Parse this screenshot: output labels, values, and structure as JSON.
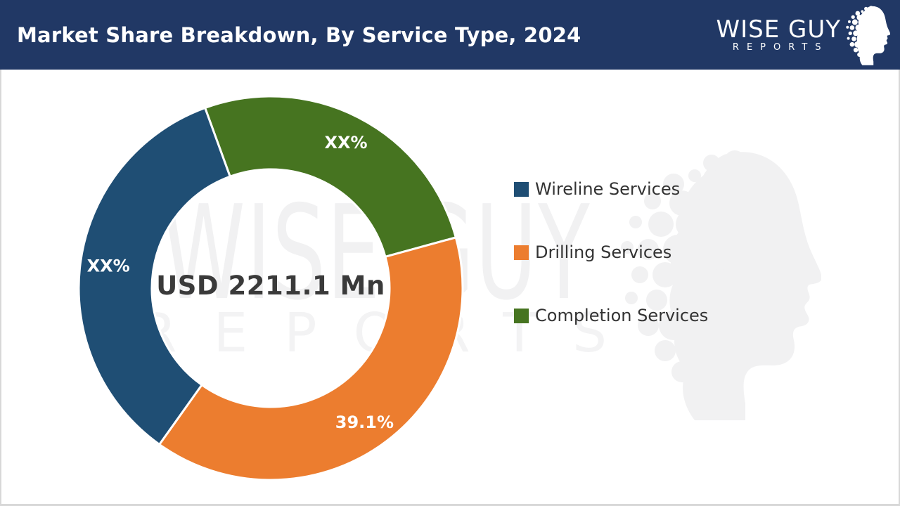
{
  "header": {
    "title": "Market Share Breakdown, By Service Type, 2024",
    "logo": {
      "name_line": "WISE GUY",
      "reports_line": "REPORTS"
    }
  },
  "watermark": {
    "name_line": "WISE GUY",
    "reports_line": "REPORTS"
  },
  "colors": {
    "header_bg": "#213865",
    "page_border": "#d8d8d8",
    "center_text": "#3a3a3a",
    "legend_text": "#333333",
    "watermark": "#f1f1f2",
    "slice_divider": "#ffffff"
  },
  "chart_data": {
    "type": "pie",
    "subtype": "donut",
    "title": "Market Share Breakdown, By Service Type, 2024",
    "center_label": "USD 2211.1 Mn",
    "start_angle_deg": -20,
    "direction": "clockwise",
    "inner_radius_ratio": 0.62,
    "segments": [
      {
        "name": "Completion Services",
        "display_label": "XX%",
        "percent": 26.3,
        "color": "#467420"
      },
      {
        "name": "Drilling Services",
        "display_label": "39.1%",
        "percent": 39.1,
        "color": "#EC7D2F"
      },
      {
        "name": "Wireline Services",
        "display_label": "XX%",
        "percent": 34.6,
        "color": "#1F4E74"
      }
    ],
    "legend": [
      {
        "label": "Wireline Services",
        "color": "#1F4E74"
      },
      {
        "label": "Drilling Services",
        "color": "#EC7D2F"
      },
      {
        "label": "Completion Services",
        "color": "#467420"
      }
    ],
    "legend_position": "right"
  }
}
